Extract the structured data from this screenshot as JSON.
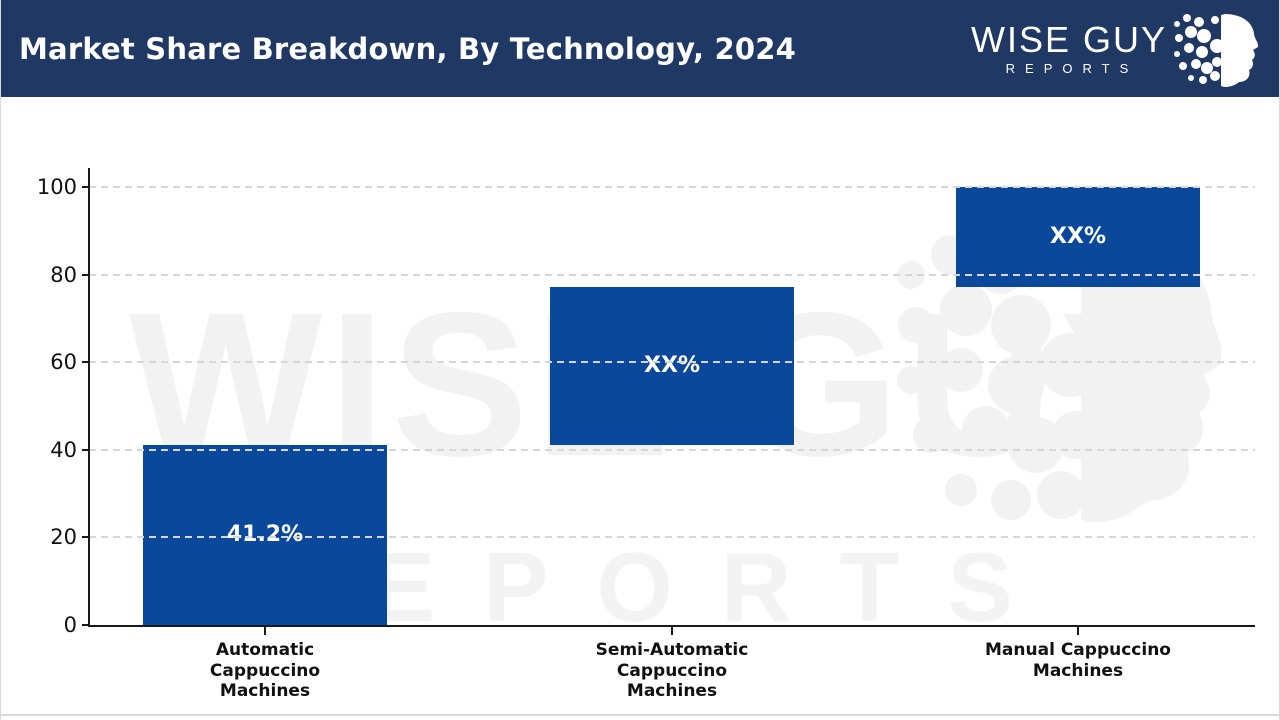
{
  "header": {
    "title": "Market Share Breakdown, By Technology, 2024",
    "logo": {
      "name": "WISE GUY",
      "sub": "REPORTS"
    }
  },
  "watermark": {
    "line1": "WISE GUY",
    "line2": "REPORTS"
  },
  "colors": {
    "header_bg": "#1f3864",
    "bar": "#0a489c",
    "grid": "#d6d6d6",
    "axis": "#1a1a1a",
    "watermark": "#f2f2f2"
  },
  "chart_data": {
    "type": "bar",
    "subtype": "waterfall-breakdown",
    "title": "Market Share Breakdown, By Technology, 2024",
    "unit": "%",
    "ylim": [
      0,
      100
    ],
    "yticks": [
      0,
      20,
      40,
      60,
      80,
      100
    ],
    "grid": "horizontal-dashed",
    "legend": "none",
    "bar_color": "#0a489c",
    "categories": [
      "Automatic Cappuccino Machines",
      "Semi-Automatic Cappuccino Machines",
      "Manual Cappuccino Machines"
    ],
    "category_lines": [
      [
        "Automatic",
        "Cappuccino",
        "Machines"
      ],
      [
        "Semi-Automatic",
        "Cappuccino",
        "Machines"
      ],
      [
        "Manual Cappuccino",
        "Machines"
      ]
    ],
    "bars": [
      {
        "category": "Automatic Cappuccino Machines",
        "start": 0,
        "end": 41.2,
        "value": 41.2,
        "label": "41.2%"
      },
      {
        "category": "Semi-Automatic Cappuccino Machines",
        "start": 41.2,
        "end": 77.2,
        "value": 36.0,
        "label": "XX%"
      },
      {
        "category": "Manual Cappuccino Machines",
        "start": 77.2,
        "end": 100,
        "value": 22.8,
        "label": "XX%"
      }
    ]
  }
}
